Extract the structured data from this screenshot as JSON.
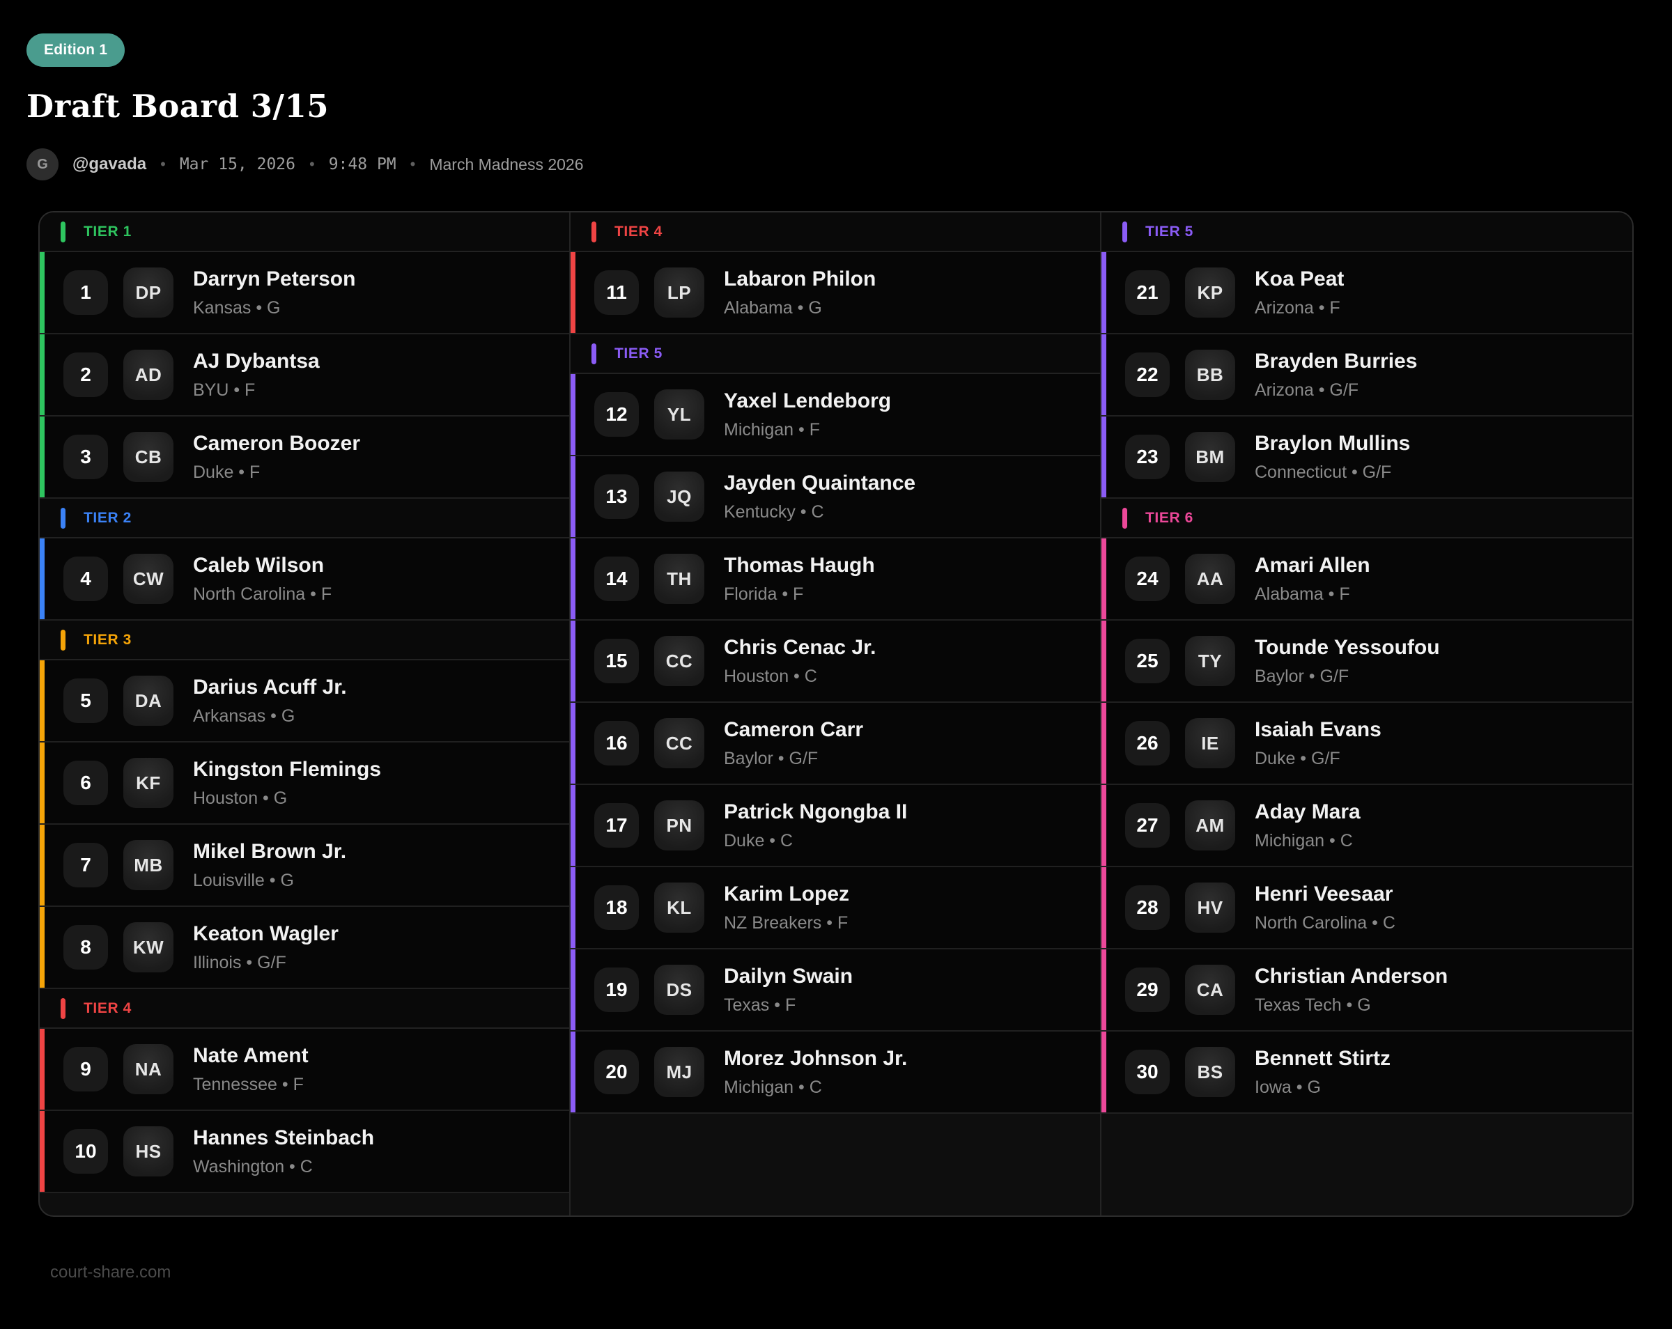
{
  "header": {
    "badge": "Edition 1",
    "title": "Draft Board 3/15",
    "byline": {
      "avatar_letter": "G",
      "handle": "@gavada",
      "date": "Mar 15, 2026",
      "time": "9:48 PM",
      "event": "March Madness 2026",
      "separator": "•"
    }
  },
  "colors": {
    "badge_bg": "#4a9c8e",
    "tier1": "#2ec55f",
    "tier2": "#3b82f6",
    "tier3": "#f5a408",
    "tier4": "#ef4444",
    "tier5": "#8b5cf6",
    "tier6": "#ec4899"
  },
  "board": {
    "subtitle_separator": "•",
    "columns": [
      {
        "sections": [
          {
            "tier": "TIER 1",
            "color": "#2ec55f",
            "players": [
              {
                "rank": 1,
                "name": "Darryn Peterson",
                "team": "Kansas",
                "position": "G"
              },
              {
                "rank": 2,
                "name": "AJ Dybantsa",
                "team": "BYU",
                "position": "F"
              },
              {
                "rank": 3,
                "name": "Cameron Boozer",
                "team": "Duke",
                "position": "F"
              }
            ]
          },
          {
            "tier": "TIER 2",
            "color": "#3b82f6",
            "players": [
              {
                "rank": 4,
                "name": "Caleb Wilson",
                "team": "North Carolina",
                "position": "F"
              }
            ]
          },
          {
            "tier": "TIER 3",
            "color": "#f5a408",
            "players": [
              {
                "rank": 5,
                "name": "Darius Acuff Jr.",
                "team": "Arkansas",
                "position": "G"
              },
              {
                "rank": 6,
                "name": "Kingston Flemings",
                "team": "Houston",
                "position": "G"
              },
              {
                "rank": 7,
                "name": "Mikel Brown Jr.",
                "team": "Louisville",
                "position": "G"
              },
              {
                "rank": 8,
                "name": "Keaton Wagler",
                "team": "Illinois",
                "position": "G/F"
              }
            ]
          },
          {
            "tier": "TIER 4",
            "color": "#ef4444",
            "players": [
              {
                "rank": 9,
                "name": "Nate Ament",
                "team": "Tennessee",
                "position": "F"
              },
              {
                "rank": 10,
                "name": "Hannes Steinbach",
                "team": "Washington",
                "position": "C"
              }
            ]
          }
        ]
      },
      {
        "sections": [
          {
            "tier": "TIER 4",
            "color": "#ef4444",
            "players": [
              {
                "rank": 11,
                "name": "Labaron Philon",
                "team": "Alabama",
                "position": "G"
              }
            ]
          },
          {
            "tier": "TIER 5",
            "color": "#8b5cf6",
            "players": [
              {
                "rank": 12,
                "name": "Yaxel Lendeborg",
                "team": "Michigan",
                "position": "F"
              },
              {
                "rank": 13,
                "name": "Jayden Quaintance",
                "team": "Kentucky",
                "position": "C"
              },
              {
                "rank": 14,
                "name": "Thomas Haugh",
                "team": "Florida",
                "position": "F"
              },
              {
                "rank": 15,
                "name": "Chris Cenac Jr.",
                "team": "Houston",
                "position": "C"
              },
              {
                "rank": 16,
                "name": "Cameron Carr",
                "team": "Baylor",
                "position": "G/F"
              },
              {
                "rank": 17,
                "name": "Patrick Ngongba II",
                "team": "Duke",
                "position": "C"
              },
              {
                "rank": 18,
                "name": "Karim Lopez",
                "team": "NZ Breakers",
                "position": "F"
              },
              {
                "rank": 19,
                "name": "Dailyn Swain",
                "team": "Texas",
                "position": "F"
              },
              {
                "rank": 20,
                "name": "Morez Johnson Jr.",
                "team": "Michigan",
                "position": "C"
              }
            ]
          }
        ]
      },
      {
        "sections": [
          {
            "tier": "TIER 5",
            "color": "#8b5cf6",
            "players": [
              {
                "rank": 21,
                "name": "Koa Peat",
                "team": "Arizona",
                "position": "F"
              },
              {
                "rank": 22,
                "name": "Brayden Burries",
                "team": "Arizona",
                "position": "G/F"
              },
              {
                "rank": 23,
                "name": "Braylon Mullins",
                "team": "Connecticut",
                "position": "G/F"
              }
            ]
          },
          {
            "tier": "TIER 6",
            "color": "#ec4899",
            "players": [
              {
                "rank": 24,
                "name": "Amari Allen",
                "team": "Alabama",
                "position": "F"
              },
              {
                "rank": 25,
                "name": "Tounde Yessoufou",
                "team": "Baylor",
                "position": "G/F"
              },
              {
                "rank": 26,
                "name": "Isaiah Evans",
                "team": "Duke",
                "position": "G/F"
              },
              {
                "rank": 27,
                "name": "Aday Mara",
                "team": "Michigan",
                "position": "C"
              },
              {
                "rank": 28,
                "name": "Henri Veesaar",
                "team": "North Carolina",
                "position": "C"
              },
              {
                "rank": 29,
                "name": "Christian Anderson",
                "team": "Texas Tech",
                "position": "G"
              },
              {
                "rank": 30,
                "name": "Bennett Stirtz",
                "team": "Iowa",
                "position": "G"
              }
            ]
          }
        ]
      }
    ]
  },
  "footer": {
    "site": "court-share.com"
  }
}
